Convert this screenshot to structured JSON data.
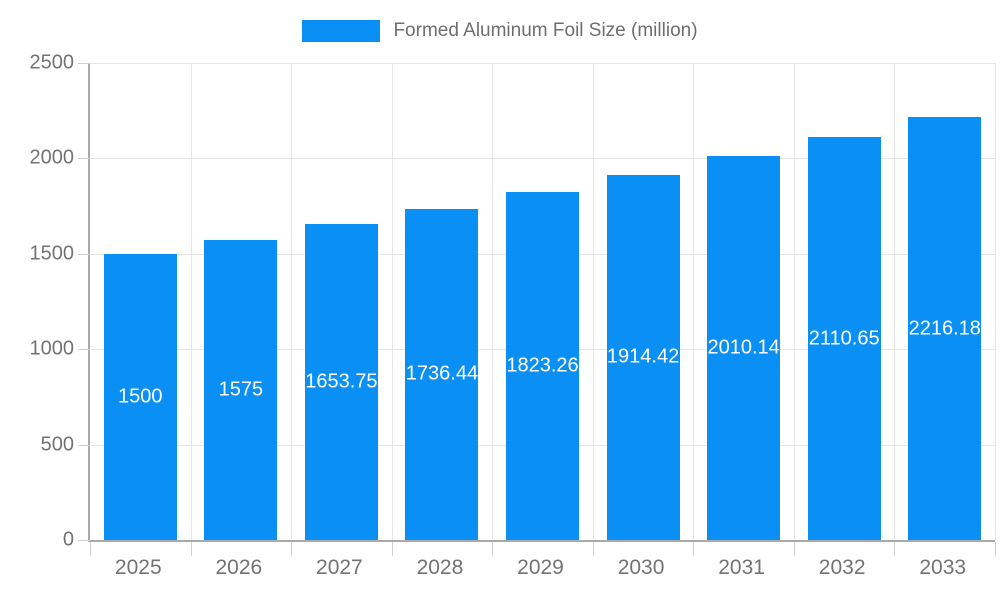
{
  "legend": {
    "label": "Formed Aluminum Foil Size (million)"
  },
  "colors": {
    "bar": "#0a90f5",
    "bar_label_text": "#ffffff",
    "axis_line": "#a9a9a9",
    "grid_line": "#e6e6e6",
    "tick_mark": "#cfcfcf",
    "axis_text": "#737373",
    "legend_text": "#6e6e6e",
    "background": "#ffffff"
  },
  "chart_data": {
    "type": "bar",
    "title": "Formed Aluminum Foil Size (million)",
    "categories": [
      "2025",
      "2026",
      "2027",
      "2028",
      "2029",
      "2030",
      "2031",
      "2032",
      "2033"
    ],
    "series": [
      {
        "name": "Formed Aluminum Foil Size (million)",
        "values": [
          1500,
          1575,
          1653.75,
          1736.44,
          1823.26,
          1914.42,
          2010.14,
          2110.65,
          2216.18
        ]
      }
    ],
    "data_labels": [
      "1500",
      "1575",
      "1653.75",
      "1736.44",
      "1823.26",
      "1914.42",
      "2010.14",
      "2110.65",
      "2216.18"
    ],
    "xlabel": "",
    "ylabel": "",
    "ylim": [
      0,
      2500
    ],
    "y_ticks": [
      0,
      500,
      1000,
      1500,
      2000,
      2500
    ],
    "grid": true,
    "legend_position": "top",
    "value_label_position": "center-of-bar"
  }
}
